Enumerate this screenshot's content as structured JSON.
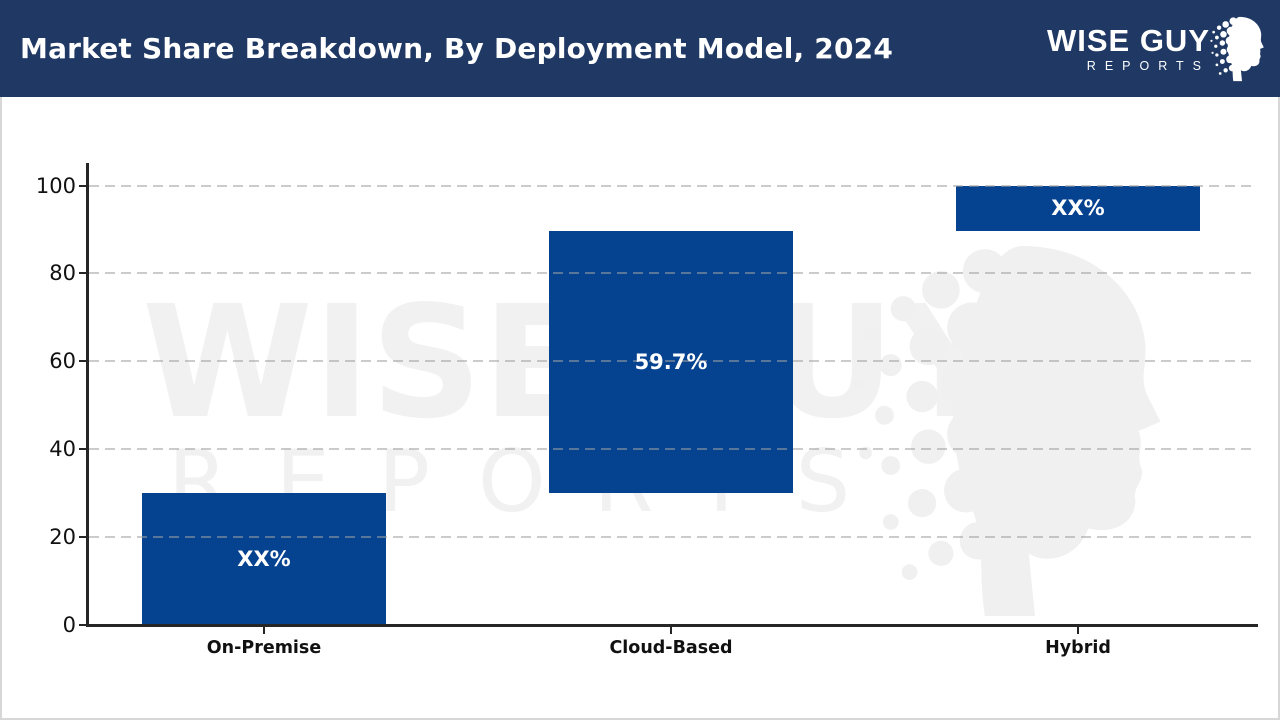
{
  "header": {
    "title": "Market Share Breakdown, By Deployment Model, 2024",
    "bg_color": "#1F3864",
    "logo": {
      "wordmark": "WISE GUY",
      "subtext": "REPORTS"
    }
  },
  "watermark": {
    "wordmark": "WISE GUY",
    "subtext": "REPORTS"
  },
  "chart_data": {
    "type": "bar",
    "subtype": "floating-segment-bars",
    "title": "Market Share Breakdown, By Deployment Model, 2024",
    "categories": [
      "On-Premise",
      "Cloud-Based",
      "Hybrid"
    ],
    "segments": [
      {
        "category": "On-Premise",
        "start": 0,
        "end": 30,
        "label": "XX%"
      },
      {
        "category": "Cloud-Based",
        "start": 30,
        "end": 89.7,
        "label": "59.7%"
      },
      {
        "category": "Hybrid",
        "start": 89.7,
        "end": 100,
        "label": "XX%"
      }
    ],
    "ylim": [
      0,
      100
    ],
    "yticks": [
      0,
      20,
      40,
      60,
      80,
      100
    ],
    "xlabel": "",
    "ylabel": "",
    "grid": {
      "axis": "y",
      "style": "dashed",
      "color": "#d9d9d9",
      "over_bars": true
    },
    "bar_color": "#05428F",
    "bar_label_color": "#ffffff",
    "legend": "none"
  }
}
